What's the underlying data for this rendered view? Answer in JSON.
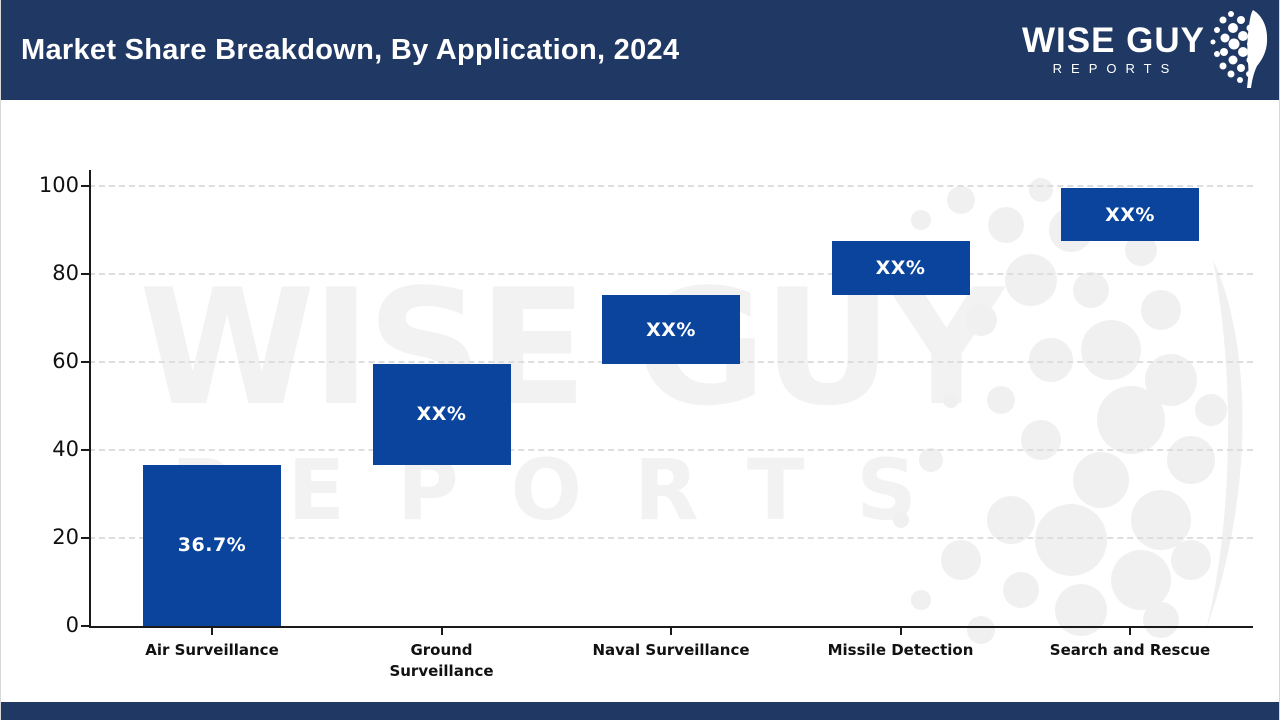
{
  "header": {
    "title": "Market Share Breakdown, By Application, 2024",
    "brand": {
      "line1": "WISE GUY",
      "line2": "REPORTS"
    }
  },
  "watermark": {
    "line1": "WISE GUY",
    "line2": "REPORTS"
  },
  "colors": {
    "header_bg": "#203864",
    "footer_bg": "#203864",
    "bar": "#0a449c",
    "bar_label": "#ffffff",
    "grid": "#dedede",
    "axis": "#1a1a1a",
    "watermark": "#f2f2f2"
  },
  "chart_data": {
    "type": "bar",
    "variant": "waterfall",
    "title": "Market Share Breakdown, By Application, 2024",
    "xlabel": "",
    "ylabel": "",
    "ylim": [
      0,
      104
    ],
    "yticks": [
      0,
      20,
      40,
      60,
      80,
      100
    ],
    "grid": "horizontal-dashed",
    "legend": "none",
    "categories": [
      "Air Surveillance",
      "Ground\nSurveillance",
      "Naval Surveillance",
      "Missile Detection",
      "Search and Rescue"
    ],
    "bars": [
      {
        "category": "Air Surveillance",
        "start": 0,
        "end": 36.7,
        "label": "36.7%"
      },
      {
        "category": "Ground\nSurveillance",
        "start": 36.7,
        "end": 59.5,
        "label": "XX%"
      },
      {
        "category": "Naval Surveillance",
        "start": 59.5,
        "end": 75.2,
        "label": "XX%"
      },
      {
        "category": "Missile Detection",
        "start": 75.2,
        "end": 87.5,
        "label": "XX%"
      },
      {
        "category": "Search and Rescue",
        "start": 87.5,
        "end": 99.5,
        "label": "XX%"
      }
    ]
  }
}
